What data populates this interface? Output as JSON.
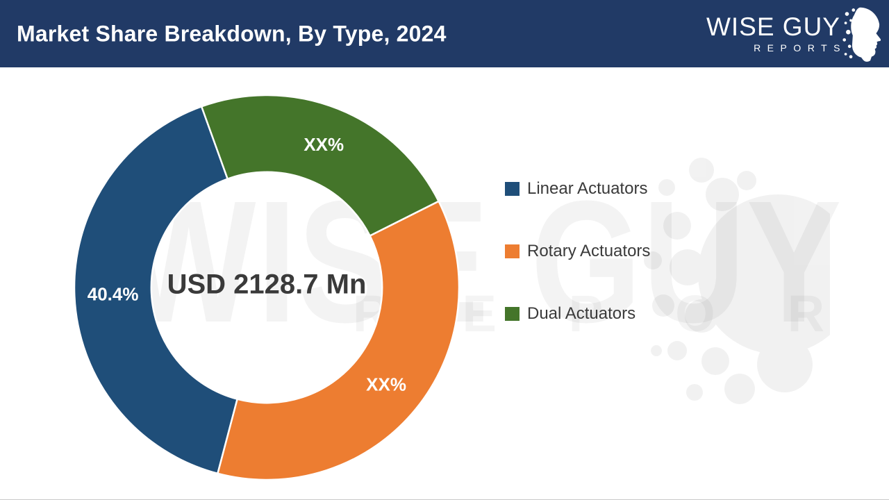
{
  "header": {
    "title": "Market Share Breakdown, By Type, 2024",
    "logo": {
      "line1": "WISE GUY",
      "line2": "REPORTS"
    }
  },
  "watermark": {
    "line1": "WISE GUY",
    "line2": "REPORTS"
  },
  "chart_data": {
    "type": "donut",
    "title": "Market Share Breakdown, By Type, 2024",
    "center_label": "USD 2128.7 Mn",
    "series": [
      {
        "name": "Linear Actuators",
        "share_pct": 40.4,
        "label": "40.4%",
        "color": "#1F4E79"
      },
      {
        "name": "Rotary Actuators",
        "share_pct": 36.5,
        "label": "XX%",
        "color": "#ED7D31"
      },
      {
        "name": "Dual Actuators",
        "share_pct": 23.1,
        "label": "XX%",
        "color": "#44752A"
      }
    ],
    "start_angle_deg": 340.2,
    "direction": "counterclockwise",
    "inner_radius_ratio": 0.6,
    "legend_position": "right",
    "slice_label_color": "#FFFFFF",
    "center_label_color": "#3A3A3A"
  },
  "colors": {
    "header_bg": "#213A66",
    "page_bg": "#FFFFFF",
    "legend_text": "#3A3A3A",
    "bottom_line": "#C9C9C9"
  }
}
